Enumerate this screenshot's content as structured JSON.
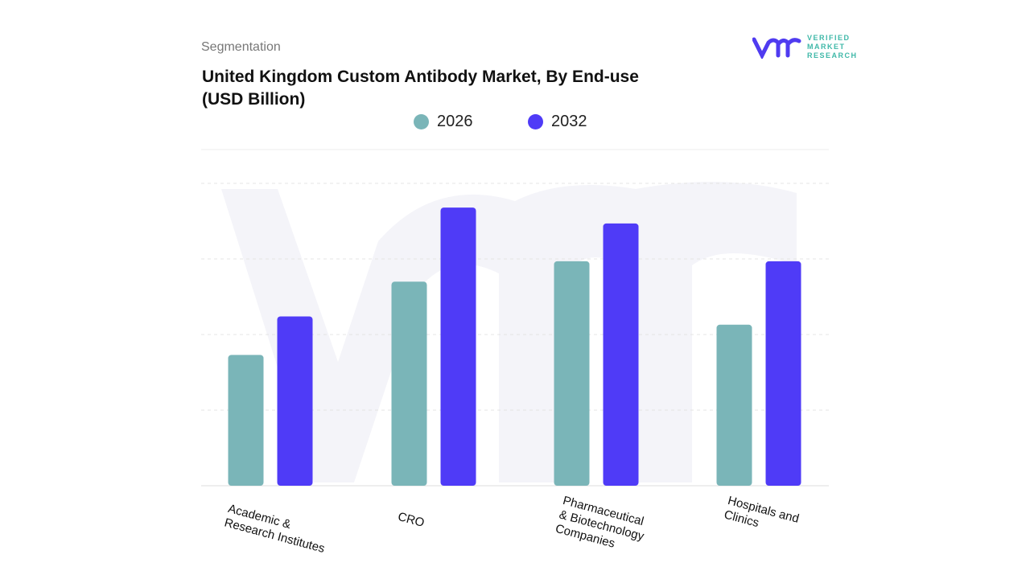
{
  "header": {
    "segment_label": "Segmentation",
    "title": "United Kingdom Custom Antibody Market, By End-use (USD Billion)"
  },
  "logo": {
    "text_lines": [
      "VERIFIED",
      "MARKET",
      "RESEARCH"
    ],
    "brand_color": "#4f3bf0",
    "text_color": "#3fb8a8"
  },
  "chart_data": {
    "type": "bar",
    "title": "United Kingdom Custom Antibody Market, By End-use (USD Billion)",
    "categories": [
      "Academic & Research Institutes",
      "CRO",
      "Pharmaceutical & Biotechnology Companies",
      "Hospitals and Clinics"
    ],
    "category_labels": [
      "Academic &\nResearch Institutes",
      "CRO",
      "Pharmaceutical\n& Biotechnology\nCompanies",
      "Hospitals and\nClinics"
    ],
    "series": [
      {
        "name": "2026",
        "color": "#7ab5b8",
        "values": [
          1.73,
          2.7,
          2.97,
          2.13
        ]
      },
      {
        "name": "2032",
        "color": "#4f3bf7",
        "values": [
          2.24,
          3.68,
          3.47,
          2.97
        ]
      }
    ],
    "ylim": [
      0,
      4
    ],
    "grid": true,
    "legend": "top-center",
    "y_tick_labels_shown": false
  }
}
